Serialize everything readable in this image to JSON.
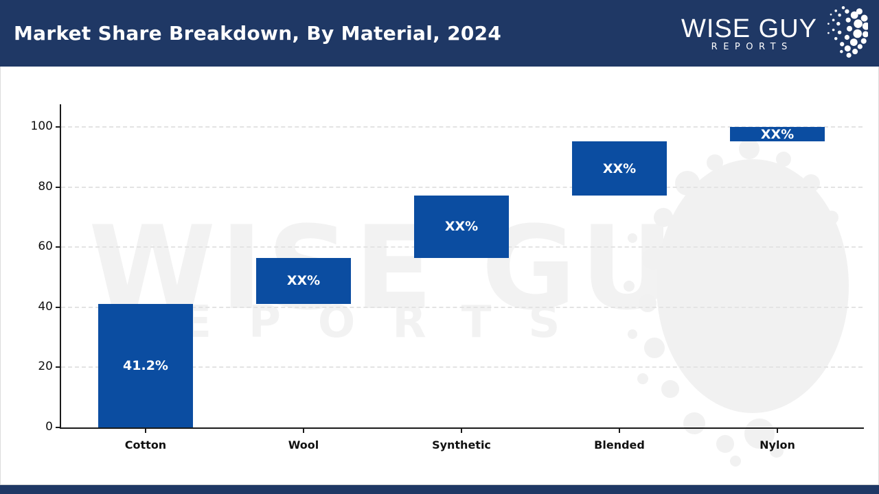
{
  "header": {
    "title": "Market Share Breakdown, By Material, 2024",
    "logo": {
      "line1": "WISE GUY",
      "line2": "REPORTS"
    }
  },
  "watermark": {
    "line1": "WISE GUY",
    "line2": "REPORTS"
  },
  "chart_data": {
    "type": "bar",
    "subtype": "waterfall",
    "title": "Market Share Breakdown, By Material, 2024",
    "categories": [
      "Cotton",
      "Wool",
      "Synthetic",
      "Blended",
      "Nylon"
    ],
    "segments": [
      {
        "category": "Cotton",
        "start": 0,
        "end": 41.2,
        "label": "41.2%"
      },
      {
        "category": "Wool",
        "start": 41.2,
        "end": 56.4,
        "label": "XX%"
      },
      {
        "category": "Synthetic",
        "start": 56.4,
        "end": 77.2,
        "label": "XX%"
      },
      {
        "category": "Blended",
        "start": 77.2,
        "end": 95.1,
        "label": "XX%"
      },
      {
        "category": "Nylon",
        "start": 95.1,
        "end": 100,
        "label": "XX%"
      }
    ],
    "yticks": [
      0,
      20,
      40,
      60,
      80,
      100
    ],
    "ylim": [
      0,
      107
    ],
    "xlabel": "",
    "ylabel": "",
    "grid": "dashed-horizontal",
    "legend": "none",
    "bar_color": "#0b4da1",
    "header_color": "#1f3865",
    "label_color": "#ffffff"
  }
}
